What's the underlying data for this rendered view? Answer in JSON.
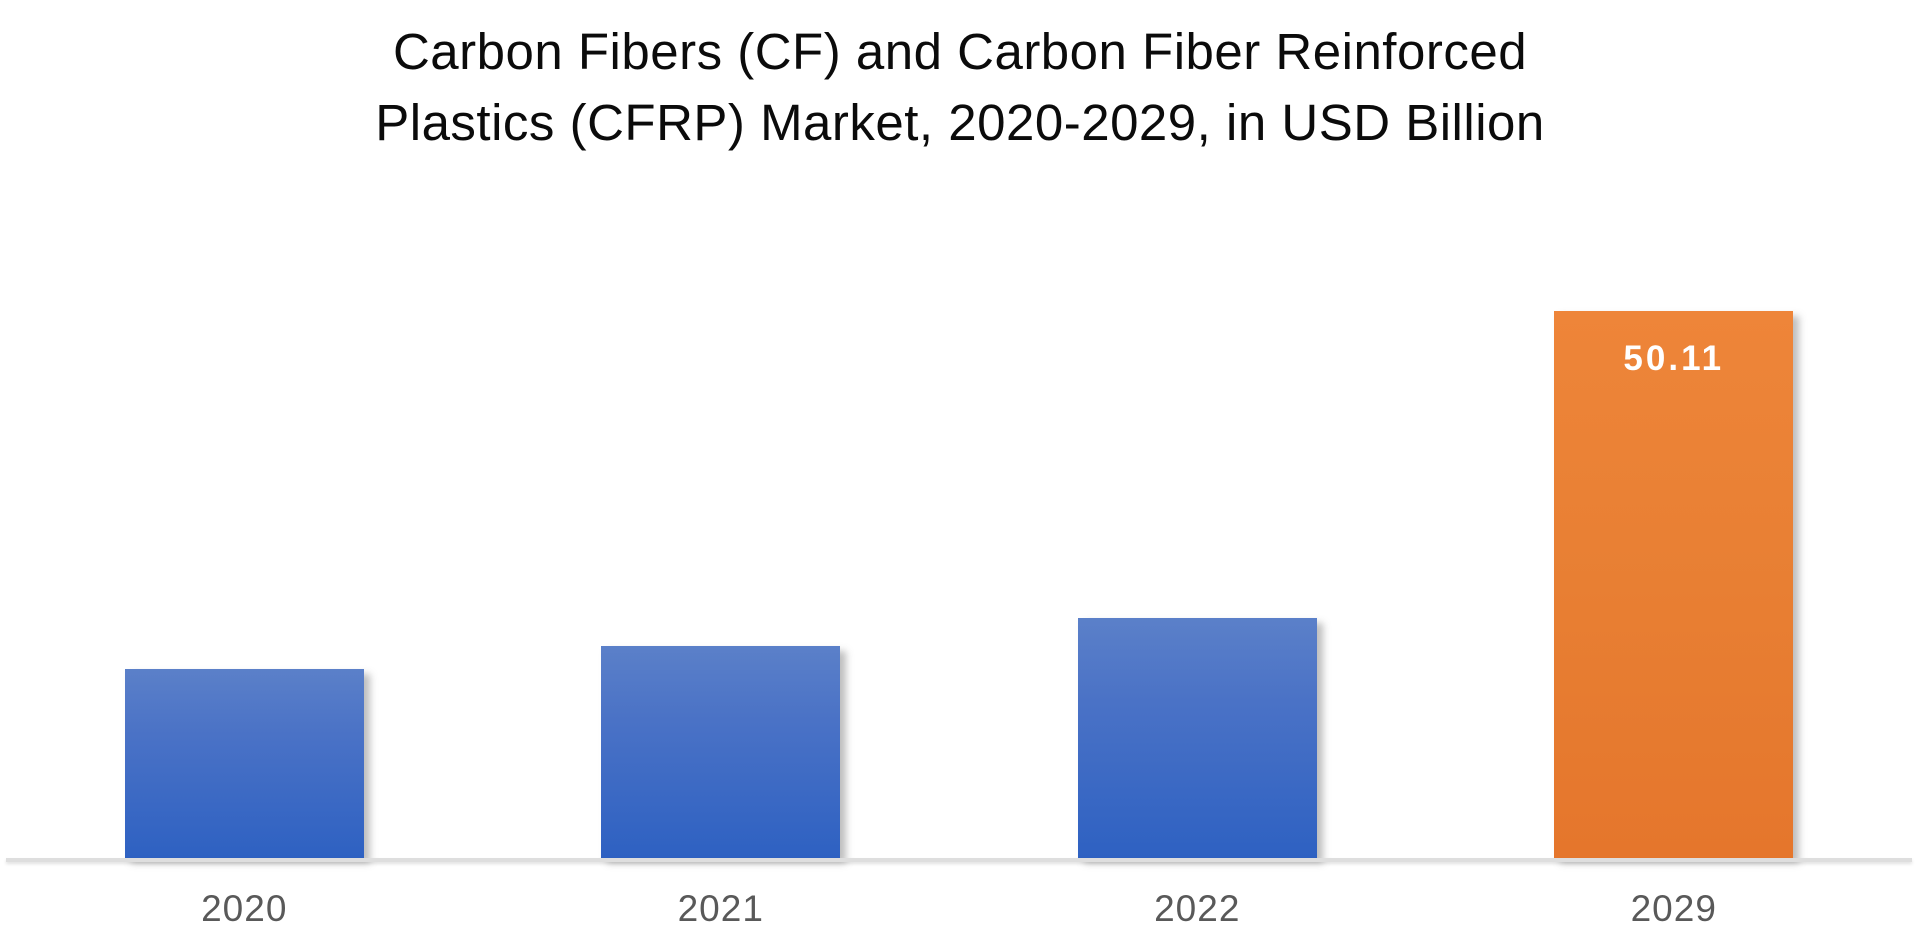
{
  "title": {
    "full": "Carbon Fibers (CF) and Carbon Fiber Reinforced Plastics (CFRP) Market, 2020-2029, in USD Billion",
    "line1": "Carbon Fibers (CF) and Carbon Fiber Reinforced",
    "line2": "Plastics (CFRP) Market, 2020-2029, in USD Billion"
  },
  "chart_data": {
    "type": "bar",
    "title": "Carbon Fibers (CF) and Carbon Fiber Reinforced Plastics (CFRP) Market, 2020-2029, in USD Billion",
    "categories": [
      "2020",
      "2021",
      "2022",
      "2029"
    ],
    "values": [
      17.3,
      19.4,
      22.0,
      50.11
    ],
    "data_labels": [
      "",
      "",
      "",
      "50.11"
    ],
    "xlabel": "",
    "ylabel": "",
    "ylim": [
      0,
      55
    ],
    "grid": false,
    "legend": false,
    "y_axis_visible": false,
    "bar_styles": [
      "blue",
      "blue",
      "blue",
      "orange"
    ],
    "colors": {
      "blue_top": "#5b80c9",
      "blue_bottom": "#2e61c2",
      "orange_top": "#ee8539",
      "orange_bottom": "#e5762c",
      "axis_line": "#dedede",
      "tick_label": "#595959",
      "title": "#0b0b0b",
      "data_label": "#ffffff"
    }
  }
}
